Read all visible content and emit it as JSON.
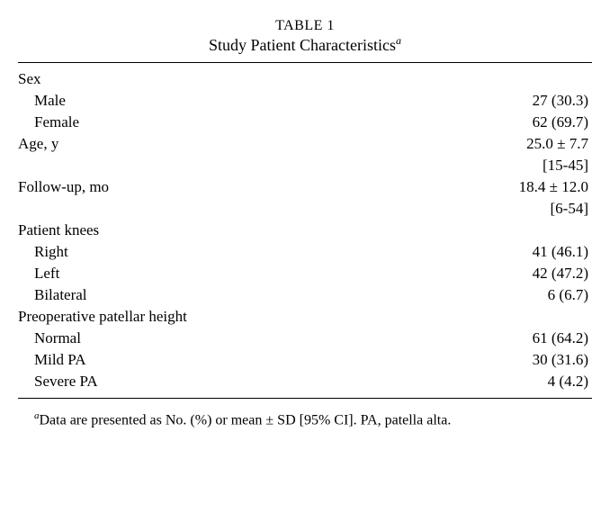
{
  "table": {
    "number": "TABLE 1",
    "title": "Study Patient Characteristics",
    "superscript": "a",
    "rows": [
      {
        "label": "Sex",
        "value": "",
        "indent": false,
        "section": true
      },
      {
        "label": "Male",
        "value": "27 (30.3)",
        "indent": true
      },
      {
        "label": "Female",
        "value": "62 (69.7)",
        "indent": true
      },
      {
        "label": "Age, y",
        "value": "25.0 ± 7.7",
        "indent": false
      },
      {
        "label": "",
        "value": "[15-45]",
        "indent": false,
        "sub": true
      },
      {
        "label": "Follow-up, mo",
        "value": "18.4 ± 12.0",
        "indent": false
      },
      {
        "label": "",
        "value": "[6-54]",
        "indent": false,
        "sub": true
      },
      {
        "label": "Patient knees",
        "value": "",
        "indent": false,
        "section": true
      },
      {
        "label": "Right",
        "value": "41 (46.1)",
        "indent": true
      },
      {
        "label": "Left",
        "value": "42 (47.2)",
        "indent": true
      },
      {
        "label": "Bilateral",
        "value": "6 (6.7)",
        "indent": true
      },
      {
        "label": "Preoperative patellar height",
        "value": "",
        "indent": false,
        "section": true
      },
      {
        "label": "Normal",
        "value": "61 (64.2)",
        "indent": true
      },
      {
        "label": "Mild PA",
        "value": "30 (31.6)",
        "indent": true
      },
      {
        "label": "Severe PA",
        "value": "4 (4.2)",
        "indent": true
      }
    ],
    "footnote": {
      "superscript": "a",
      "text": "Data are presented as No. (%) or mean ± SD [95% CI]. PA, patella alta."
    }
  }
}
